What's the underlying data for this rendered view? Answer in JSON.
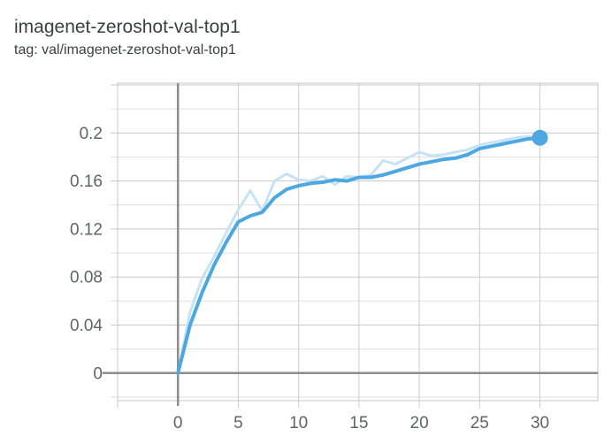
{
  "header": {
    "title": "imagenet-zeroshot-val-top1",
    "tag_line": "tag: val/imagenet-zeroshot-val-top1"
  },
  "colors": {
    "title_text": "#3c4043",
    "tick_text": "#616467",
    "grid_minor": "#e0e0e0",
    "grid_major": "#c7c7c7",
    "grid_vertical": "#cdcdcd",
    "plot_border": "#c7c7c7",
    "zero_axis": "#8d8d8d",
    "raw_line": "#c6e2f5",
    "smoothed_line": "#4da7e0",
    "end_marker": "#4da7e0"
  },
  "chart_data": {
    "type": "line",
    "title": "imagenet-zeroshot-val-top1",
    "tag": "val/imagenet-zeroshot-val-top1",
    "legend": "none",
    "grid": true,
    "x": [
      0,
      1,
      2,
      3,
      4,
      5,
      6,
      7,
      8,
      9,
      10,
      11,
      12,
      13,
      14,
      15,
      16,
      17,
      18,
      19,
      20,
      21,
      22,
      23,
      24,
      25,
      26,
      27,
      28,
      29,
      30
    ],
    "series": [
      {
        "name": "raw",
        "role": "unsmoothed-values",
        "values": [
          0.0,
          0.051,
          0.079,
          0.097,
          0.117,
          0.136,
          0.152,
          0.135,
          0.16,
          0.166,
          0.161,
          0.16,
          0.164,
          0.157,
          0.164,
          0.163,
          0.165,
          0.177,
          0.174,
          0.179,
          0.184,
          0.181,
          0.182,
          0.184,
          0.186,
          0.19,
          0.192,
          0.194,
          0.196,
          0.197,
          0.196
        ]
      },
      {
        "name": "smoothed",
        "role": "smoothed-values",
        "end_marker": true,
        "values": [
          0.0,
          0.04,
          0.067,
          0.09,
          0.109,
          0.126,
          0.131,
          0.134,
          0.146,
          0.153,
          0.156,
          0.158,
          0.159,
          0.161,
          0.16,
          0.163,
          0.163,
          0.165,
          0.168,
          0.171,
          0.174,
          0.176,
          0.178,
          0.179,
          0.182,
          0.187,
          0.189,
          0.191,
          0.193,
          0.195,
          0.196
        ]
      }
    ],
    "x_axis": {
      "min": -5,
      "max": 34.8,
      "ticks": [
        0,
        5,
        10,
        15,
        20,
        25,
        30
      ],
      "tick_labels": [
        "0",
        "5",
        "10",
        "15",
        "20",
        "25",
        "30"
      ],
      "gridline_step": 5
    },
    "y_axis": {
      "min": -0.023,
      "max": 0.2415,
      "minor_step": 0.02,
      "major_step": 0.04,
      "major_values": [
        0,
        0.04,
        0.08,
        0.12,
        0.16,
        0.2
      ],
      "tick_labels": [
        "0",
        "0.04",
        "0.08",
        "0.12",
        "0.16",
        "0.2"
      ]
    }
  }
}
